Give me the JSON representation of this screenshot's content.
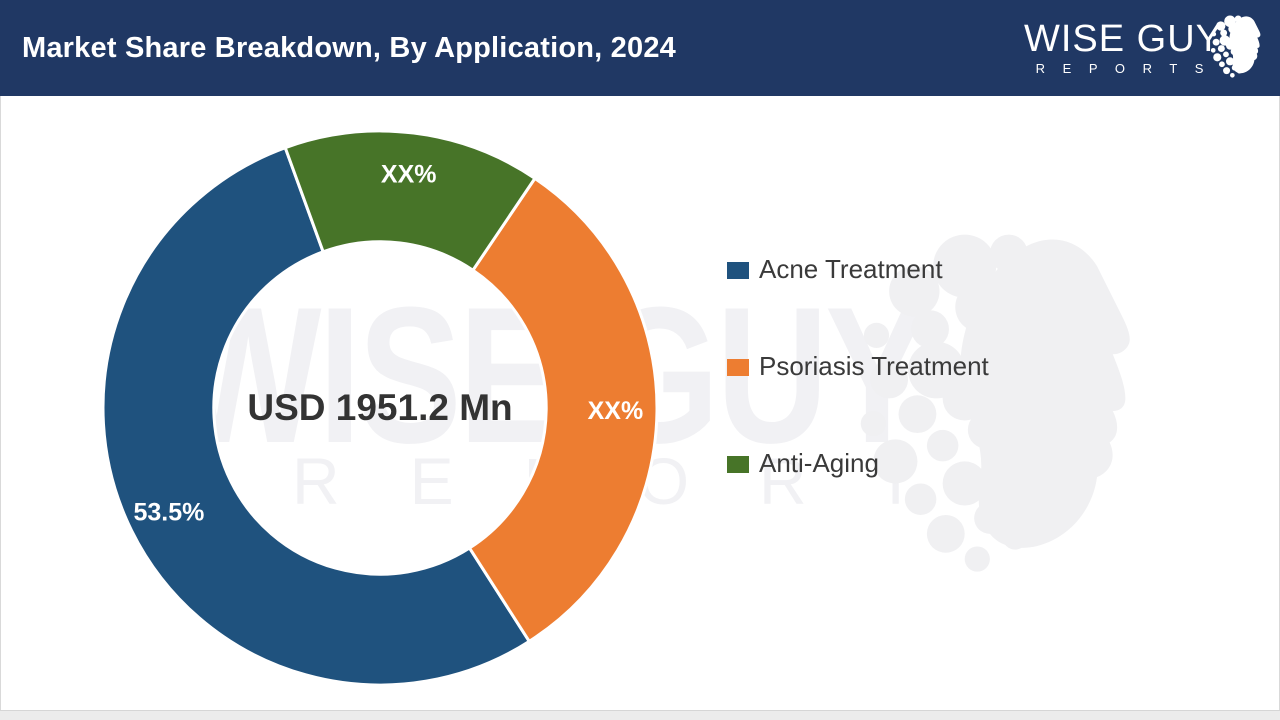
{
  "header": {
    "title": "Market Share Breakdown, By Application, 2024",
    "bg_color": "#203864",
    "logo": {
      "line1": "WISE GUY",
      "line2": "R E P O R T S"
    }
  },
  "watermark": {
    "line1": "WISE GUY",
    "line2": "REPORTS"
  },
  "chart_data": {
    "type": "pie",
    "subtype": "donut",
    "title": "Market Share Breakdown, By Application, 2024",
    "center_label": "USD 1951.2 Mn",
    "categories": [
      "Acne Treatment",
      "Psoriasis Treatment",
      "Anti-Aging"
    ],
    "slice_labels": [
      "53.5%",
      "XX%",
      "XX%"
    ],
    "values_pct": [
      53.5,
      31.5,
      15.0
    ],
    "colors": [
      "#1F527E",
      "#ED7D31",
      "#477428"
    ],
    "start_angle_deg": 110,
    "direction": "counterclockwise",
    "inner_radius_ratio": 0.6,
    "label_radius_ratio": 0.85,
    "legend_position": "right",
    "legend_entries": [
      "Acne Treatment",
      "Psoriasis Treatment",
      "Anti-Aging"
    ]
  }
}
